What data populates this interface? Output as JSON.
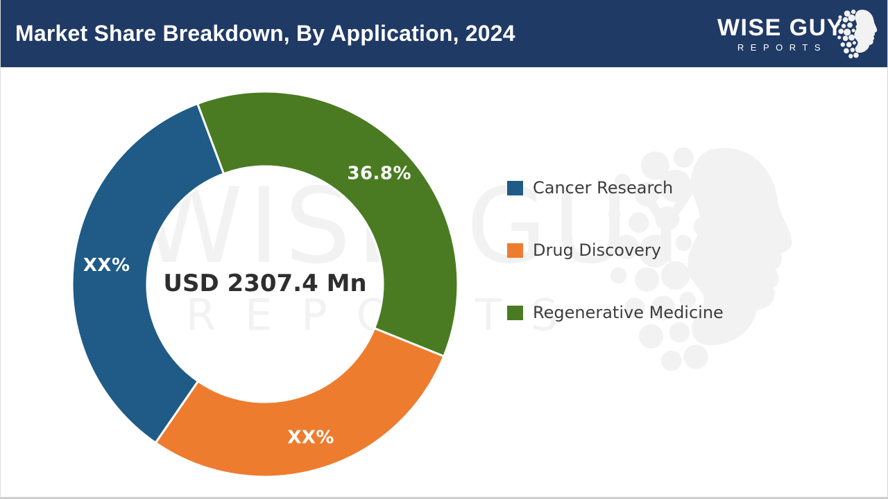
{
  "header": {
    "title": "Market Share Breakdown, By Application, 2024",
    "logo": {
      "brand": "WISE GUY",
      "sub": "REPORTS"
    }
  },
  "watermark": {
    "line1": "WISE GUY",
    "line2": "REPORTS"
  },
  "chart_data": {
    "type": "donut",
    "title": "Market Share Breakdown, By Application, 2024",
    "center_label": "USD 2307.4 Mn",
    "start_angle_deg": -20.5,
    "legend_position": "right",
    "slices": [
      {
        "label": "Cancer Research",
        "value": 34.7,
        "display": "XX%",
        "color": "#1f5b86"
      },
      {
        "label": "Drug Discovery",
        "value": 28.5,
        "display": "XX%",
        "color": "#ee7c2f"
      },
      {
        "label": "Regenerative Medicine",
        "value": 36.8,
        "display": "36.8%",
        "color": "#4a7b22"
      }
    ],
    "colors": {
      "header_bg": "#203a66",
      "slice_label_text": "#ffffff",
      "center_text": "#2e2e2e",
      "legend_text": "#3d3d3d",
      "watermark": "#f2f2f2"
    }
  }
}
